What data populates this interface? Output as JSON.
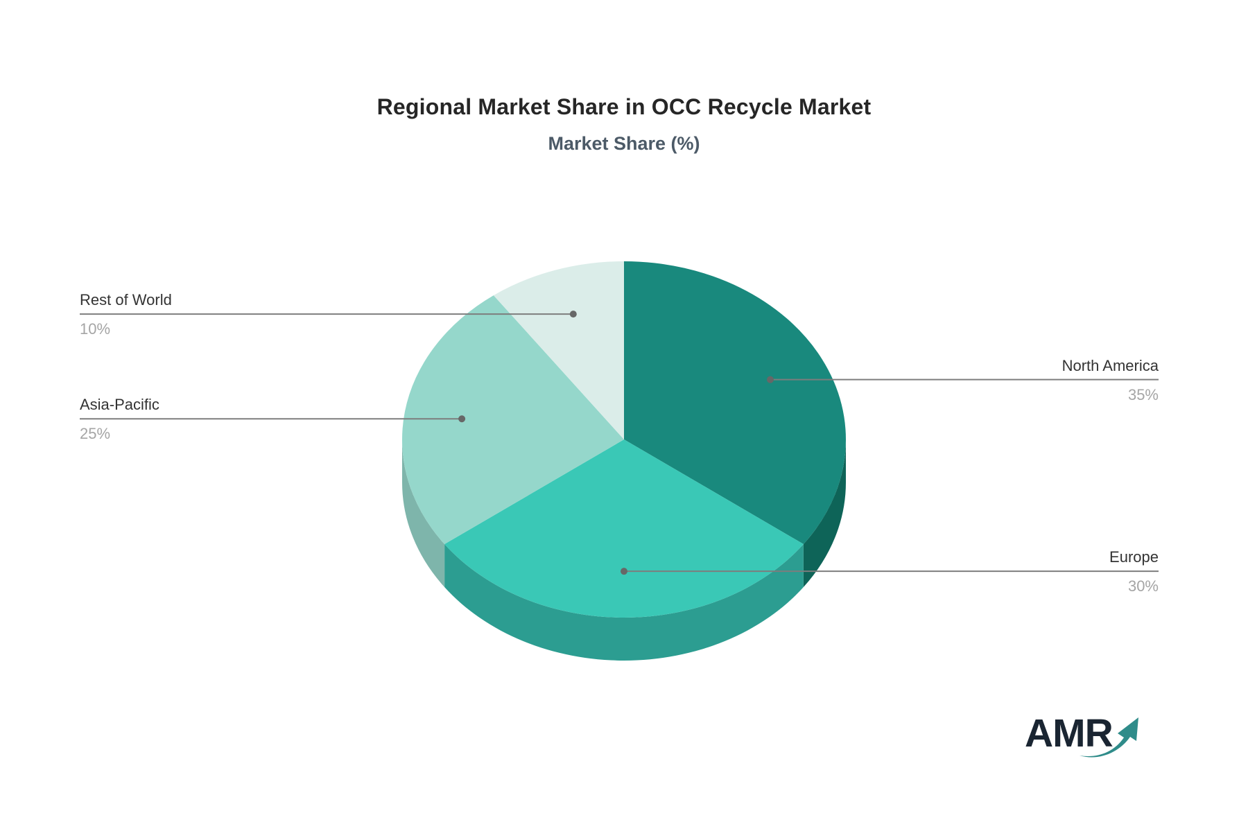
{
  "title": "Regional Market Share in OCC Recycle Market",
  "subtitle": "Market Share (%)",
  "logo": {
    "text": "AMR"
  },
  "colors": {
    "background": "#ffffff",
    "title": "#262626",
    "subtitle": "#4c5a67",
    "label_text": "#333333",
    "value_text": "#a5a5a5",
    "leader_line": "#7d7d7d",
    "leader_dot": "#676767",
    "logo_text": "#1a2532",
    "logo_arrow": "#2f8c8a"
  },
  "chart_data": {
    "type": "pie",
    "style": "3d-pie",
    "title": "Regional Market Share in OCC Recycle Market",
    "subtitle": "Market Share (%)",
    "unit": "%",
    "start_angle_deg": 0,
    "direction": "clockwise",
    "legend": "none",
    "label_style": "leader-line callouts with name above line and percent below",
    "categories": [
      "North America",
      "Europe",
      "Asia-Pacific",
      "Rest of World"
    ],
    "values": [
      35,
      30,
      25,
      10
    ],
    "slices": [
      {
        "name": "North America",
        "value": 35,
        "value_label": "35%",
        "color": "#19897d",
        "wall_color": "#0e6458",
        "side": "right"
      },
      {
        "name": "Europe",
        "value": 30,
        "value_label": "30%",
        "color": "#3ac8b6",
        "wall_color": "#2c9d91",
        "side": "right"
      },
      {
        "name": "Asia-Pacific",
        "value": 25,
        "value_label": "25%",
        "color": "#95d7cb",
        "wall_color": "#7eb5ab",
        "side": "left"
      },
      {
        "name": "Rest of World",
        "value": 10,
        "value_label": "10%",
        "color": "#dbede9",
        "wall_color": null,
        "side": "left"
      }
    ]
  }
}
